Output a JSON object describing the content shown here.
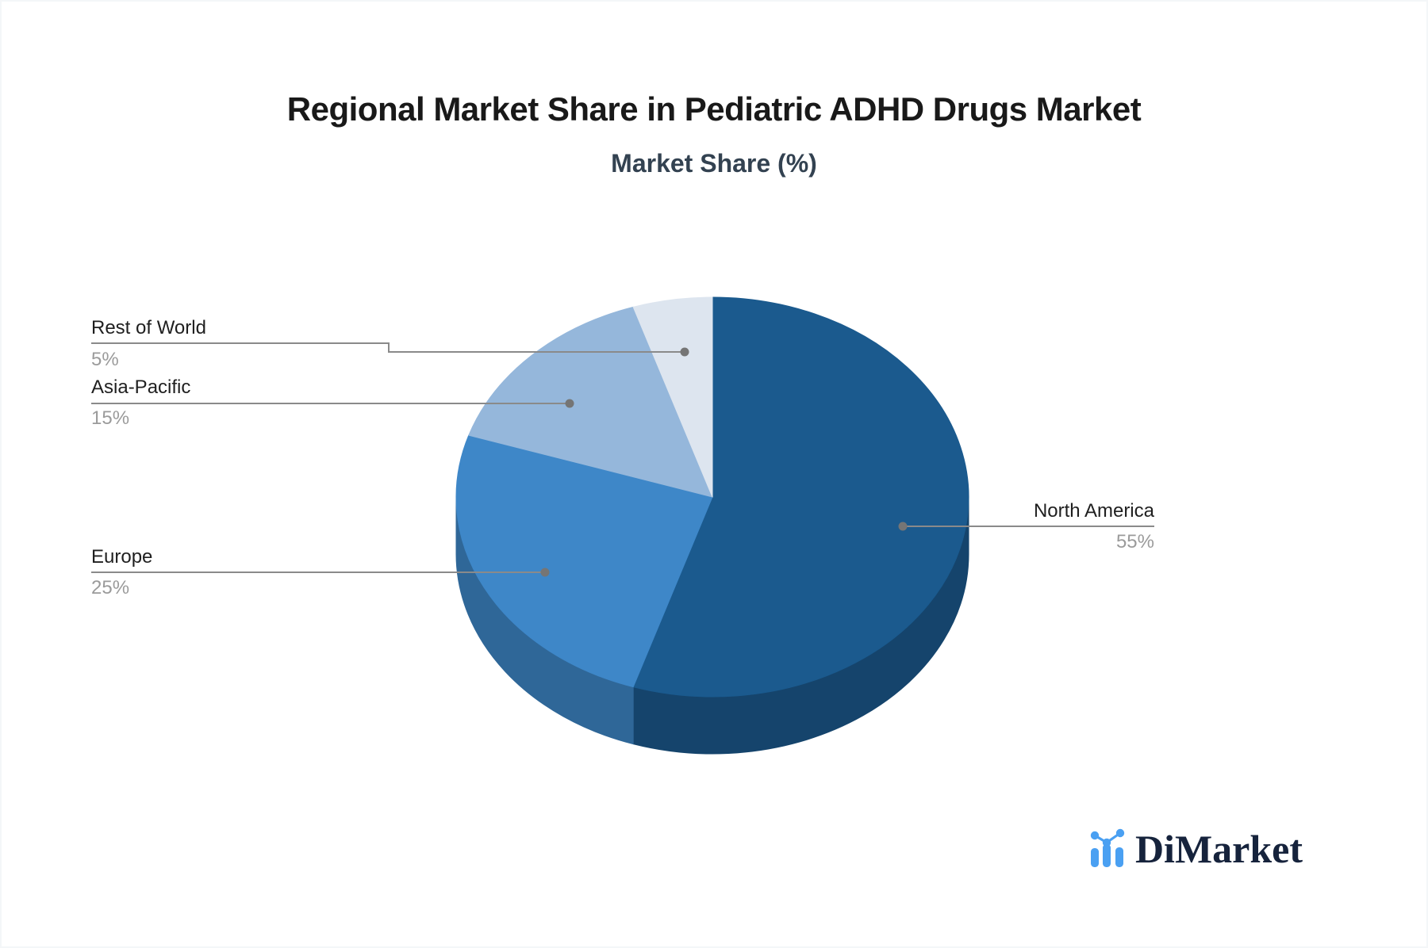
{
  "title": "Regional Market Share in Pediatric ADHD Drugs Market",
  "subtitle": "Market Share (%)",
  "brand": {
    "name": "DiMarket",
    "logo_icon": "bar-chart-trend-icon",
    "text_color": "#16233c",
    "icon_color": "#4aa0f2"
  },
  "chart_data": {
    "type": "pie",
    "is_3d": true,
    "title": "Regional Market Share in Pediatric ADHD Drugs Market",
    "subtitle": "Market Share (%)",
    "unit": "%",
    "legend_position": "none",
    "start_angle_deg": 0,
    "direction": "clockwise",
    "slices": [
      {
        "label": "North America",
        "value": 55,
        "display": "55%",
        "color": "#1b5a8e"
      },
      {
        "label": "Europe",
        "value": 25,
        "display": "25%",
        "color": "#3e87c8"
      },
      {
        "label": "Asia-Pacific",
        "value": 15,
        "display": "15%",
        "color": "#95b7db"
      },
      {
        "label": "Rest of World",
        "value": 5,
        "display": "5%",
        "color": "#dde5ef"
      }
    ],
    "connector_color": "#8a8a8a",
    "label_color": "#1f1f1f",
    "percent_color": "#9b9b9b"
  }
}
